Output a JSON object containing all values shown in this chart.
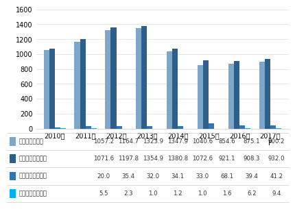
{
  "categories": [
    "2010年",
    "2011年",
    "2012年",
    "2013年",
    "2014年",
    "2015年",
    "2016年",
    "2017年\nF"
  ],
  "series": [
    {
      "label": "白糖产量：万吨",
      "values": [
        1057.2,
        1164.7,
        1323.9,
        1347.9,
        1040.6,
        854.6,
        875.1,
        900.2
      ],
      "color": "#7ea6c8"
    },
    {
      "label": "白糖需求量：万吨",
      "values": [
        1071.6,
        1197.8,
        1354.9,
        1380.8,
        1072.6,
        921.1,
        908.3,
        932.0
      ],
      "color": "#2e5f8a"
    },
    {
      "label": "白糖进口量：万吨",
      "values": [
        20.0,
        35.4,
        32.0,
        34.1,
        33.0,
        68.1,
        39.4,
        41.2
      ],
      "color": "#2e75b6"
    },
    {
      "label": "白糖出口量：万吨",
      "values": [
        5.5,
        2.3,
        1.0,
        1.2,
        1.0,
        1.6,
        6.2,
        9.4
      ],
      "color": "#00b0f0"
    }
  ],
  "ylim": [
    0,
    1600
  ],
  "yticks": [
    0,
    200,
    400,
    600,
    800,
    1000,
    1200,
    1400,
    1600
  ],
  "legend_rows": [
    [
      "白糖产量：万吨",
      "1057.2",
      "1164.7",
      "1323.9",
      "1347.9",
      "1040.6",
      "854.6",
      "875.1",
      "900.2"
    ],
    [
      "白糖需求量：万吨",
      "1071.6",
      "1197.8",
      "1354.9",
      "1380.8",
      "1072.6",
      "921.1",
      "908.3",
      "932.0"
    ],
    [
      "白糖进口量：万吨",
      "20.0",
      "35.4",
      "32.0",
      "34.1",
      "33.0",
      "68.1",
      "39.4",
      "41.2"
    ],
    [
      "白糖出口量：万吨",
      "5.5",
      "2.3",
      "1.0",
      "1.2",
      "1.0",
      "1.6",
      "6.2",
      "9.4"
    ]
  ],
  "background_color": "#ffffff",
  "grid_color": "#d9d9d9",
  "line_color": "#cccccc"
}
